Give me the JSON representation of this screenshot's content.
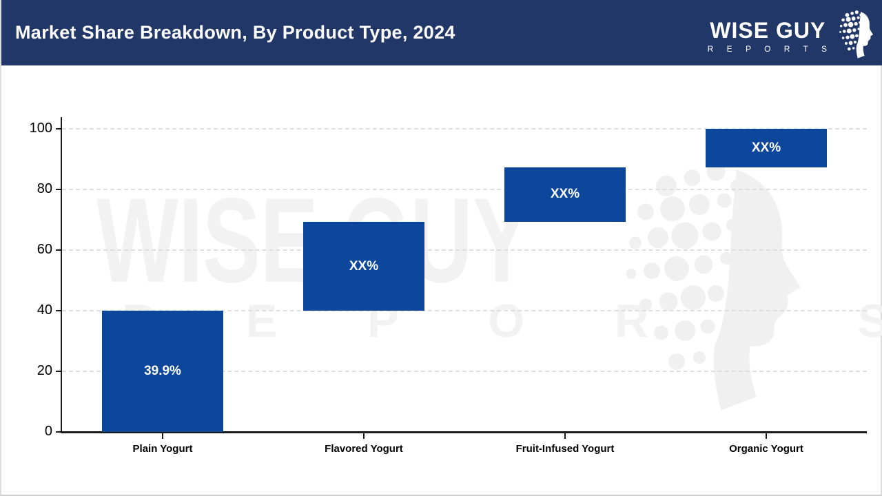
{
  "header": {
    "title": "Market Share Breakdown, By Product Type, 2024",
    "logo": {
      "line1": "WISE GUY",
      "line2": "R E P O R T S",
      "head_icon": "dotted-face-profile-icon"
    }
  },
  "watermark": {
    "line1": "WISE GUY",
    "line2": "R E P O R T S",
    "head_icon": "dotted-face-profile-icon"
  },
  "colors": {
    "header_bg": "#213767",
    "header_text": "#ffffff",
    "bar": "#0c479c",
    "bar_label": "#ffffff",
    "axis": "#1a1a1a",
    "grid": "#dedede",
    "watermark": "#f2f2f2"
  },
  "chart_data": {
    "type": "bar",
    "variant": "waterfall",
    "title": "Market Share Breakdown, By Product Type, 2024",
    "xlabel": "",
    "ylabel": "",
    "ylim": [
      0,
      100
    ],
    "yticks": [
      0,
      20,
      40,
      60,
      80,
      100
    ],
    "grid": "horizontal-dashed",
    "legend": "none",
    "categories": [
      "Plain Yogurt",
      "Flavored Yogurt",
      "Fruit-Infused Yogurt",
      "Organic Yogurt"
    ],
    "series": [
      {
        "name": "Market Share",
        "segments": [
          {
            "start": 0,
            "end": 39.9,
            "label": "39.9%"
          },
          {
            "start": 39.9,
            "end": 69.3,
            "label": "XX%"
          },
          {
            "start": 69.3,
            "end": 87.3,
            "label": "XX%"
          },
          {
            "start": 87.3,
            "end": 100,
            "label": "XX%"
          }
        ]
      }
    ]
  }
}
